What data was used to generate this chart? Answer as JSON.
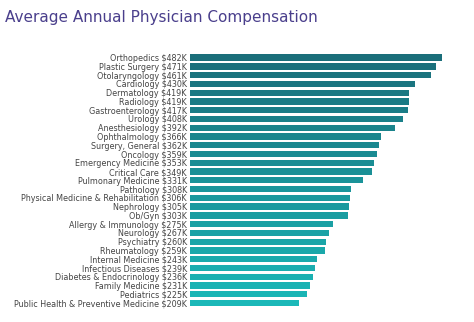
{
  "title": "Average Annual Physician Compensation",
  "categories": [
    "Public Health & Preventive Medicine $209K",
    "Pediatrics $225K",
    "Family Medicine $231K",
    "Diabetes & Endocrinology $236K",
    "Infectious Diseases $239K",
    "Internal Medicine $243K",
    "Rheumatology $259K",
    "Psychiatry $260K",
    "Neurology $267K",
    "Allergy & Immunology $275K",
    "Ob/Gyn $303K",
    "Nephrology $305K",
    "Physical Medicine & Rehabilitation $306K",
    "Pathology $308K",
    "Pulmonary Medicine $331K",
    "Critical Care $349K",
    "Emergency Medicine $353K",
    "Oncology $359K",
    "Surgery, General $362K",
    "Ophthalmology $366K",
    "Anesthesiology $392K",
    "Urology $408K",
    "Gastroenterology $417K",
    "Radiology $419K",
    "Dermatology $419K",
    "Cardiology $430K",
    "Otolaryngology $461K",
    "Plastic Surgery $471K",
    "Orthopedics $482K"
  ],
  "values": [
    209,
    225,
    231,
    236,
    239,
    243,
    259,
    260,
    267,
    275,
    303,
    305,
    306,
    308,
    331,
    349,
    353,
    359,
    362,
    366,
    392,
    408,
    417,
    419,
    419,
    430,
    461,
    471,
    482
  ],
  "bar_color_top": "#1a6e7a",
  "bar_color_bottom": "#1bb8b8",
  "title_color": "#4a3f8c",
  "label_color": "#444444",
  "background_color": "#ffffff",
  "title_fontsize": 11,
  "label_fontsize": 5.8
}
